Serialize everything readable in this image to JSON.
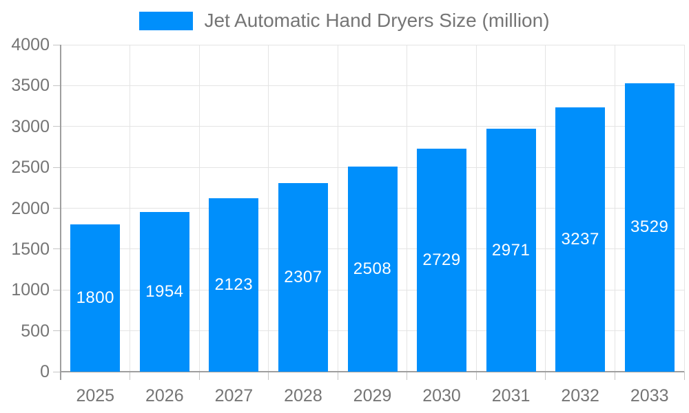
{
  "legend": {
    "label": "Jet Automatic Hand Dryers Size (million)"
  },
  "chart_data": {
    "type": "bar",
    "title": "Jet Automatic Hand Dryers Size (million)",
    "categories": [
      "2025",
      "2026",
      "2027",
      "2028",
      "2029",
      "2030",
      "2031",
      "2032",
      "2033"
    ],
    "series": [
      {
        "name": "Jet Automatic Hand Dryers Size (million)",
        "values": [
          1800,
          1954,
          2123,
          2307,
          2508,
          2729,
          2971,
          3237,
          3529
        ]
      }
    ],
    "data_labels_visible": true,
    "xlabel": "",
    "ylabel": "",
    "ylim": [
      0,
      4000
    ],
    "ytick_step": 500,
    "grid": true,
    "legend_position": "top",
    "colors": {
      "bar": "#008FFB",
      "axis_text": "#757575",
      "data_label": "#ffffff",
      "gridline": "#e4e4e4",
      "axis_line": "#9e9e9e",
      "tick": "#c4c4c4",
      "background": "#ffffff"
    }
  }
}
